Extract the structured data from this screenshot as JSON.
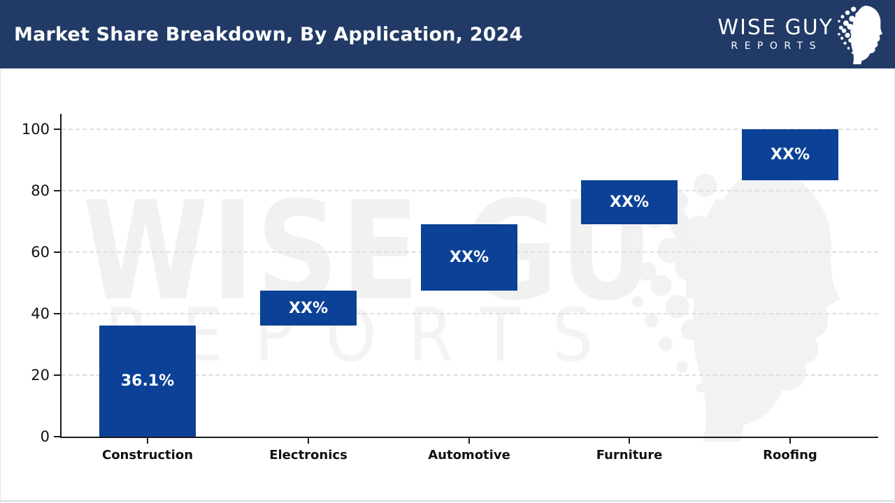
{
  "header": {
    "title": "Market Share Breakdown, By Application, 2024",
    "bg_color": "#213A66",
    "logo": {
      "line1": "WISE GUY",
      "line2": "REPORTS"
    }
  },
  "watermark": {
    "line1": "WISE GUY",
    "line2": "REPORTS"
  },
  "chart_data": {
    "type": "bar",
    "subtype": "waterfall",
    "title": "Market Share Breakdown, By Application, 2024",
    "categories": [
      "Construction",
      "Electronics",
      "Automotive",
      "Furniture",
      "Roofing"
    ],
    "series": [
      {
        "name": "Market Share",
        "segments": [
          {
            "category": "Construction",
            "start": 0,
            "end": 36.1,
            "label": "36.1%"
          },
          {
            "category": "Electronics",
            "start": 36.1,
            "end": 47.4,
            "label": "XX%"
          },
          {
            "category": "Automotive",
            "start": 47.4,
            "end": 69.0,
            "label": "XX%"
          },
          {
            "category": "Furniture",
            "start": 69.0,
            "end": 83.3,
            "label": "XX%"
          },
          {
            "category": "Roofing",
            "start": 83.3,
            "end": 100,
            "label": "XX%"
          }
        ]
      }
    ],
    "xlabel": "",
    "ylabel": "",
    "y_ticks": [
      0,
      20,
      40,
      60,
      80,
      100
    ],
    "ylim": [
      0,
      105
    ],
    "grid": "horizontal-dashed",
    "legend_position": "none",
    "bar_color": "#0B4196",
    "bar_label_color": "#FFFFFF",
    "axis_color": "#1a1a1a",
    "gridline_color": "#dedede"
  }
}
